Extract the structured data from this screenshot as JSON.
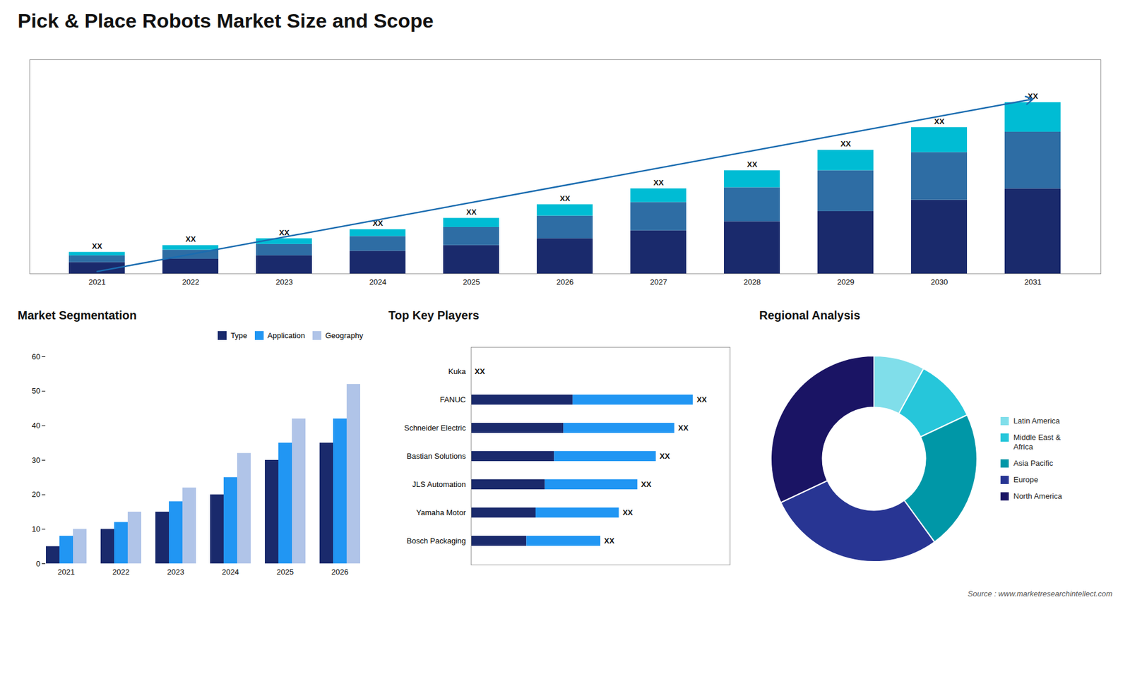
{
  "title": "Pick & Place Robots Market Size and Scope",
  "caption": "Source : www.marketresearchintellect.com",
  "chart_data": [
    {
      "type": "bar",
      "stacked": true,
      "categories": [
        "2021",
        "2022",
        "2023",
        "2024",
        "2025",
        "2026",
        "2027",
        "2028",
        "2029",
        "2030",
        "2031"
      ],
      "series": [
        {
          "color": "#1a2a6c",
          "values": [
            1.0,
            1.3,
            1.6,
            2.0,
            2.5,
            3.1,
            3.8,
            4.6,
            5.5,
            6.5,
            7.5
          ]
        },
        {
          "color": "#2e6da4",
          "values": [
            0.6,
            0.8,
            1.0,
            1.3,
            1.6,
            2.0,
            2.5,
            3.0,
            3.6,
            4.2,
            5.0
          ]
        },
        {
          "color": "#00bcd4",
          "values": [
            0.3,
            0.4,
            0.5,
            0.6,
            0.8,
            1.0,
            1.2,
            1.5,
            1.8,
            2.2,
            2.6
          ]
        }
      ],
      "ylim": [
        0,
        18.875
      ],
      "yticks": [],
      "tick_labels": "x",
      "grid": false,
      "annotations": [
        {
          "text": "XX",
          "x": "2021"
        },
        {
          "text": "XX",
          "x": "2022"
        },
        {
          "text": "XX",
          "x": "2023"
        },
        {
          "text": "XX",
          "x": "2024"
        },
        {
          "text": "XX",
          "x": "2025"
        },
        {
          "text": "XX",
          "x": "2026"
        },
        {
          "text": "XX",
          "x": "2027"
        },
        {
          "text": "XX",
          "x": "2028"
        },
        {
          "text": "XX",
          "x": "2029"
        },
        {
          "text": "XX",
          "x": "2030"
        },
        {
          "text": "XX",
          "x": "2031"
        },
        {
          "type": "arrow",
          "color": "#1a6cb0",
          "from": {
            "x": "2021",
            "y": 0.2
          },
          "to": {
            "x": "2031",
            "y": 15.4
          }
        }
      ]
    },
    {
      "type": "bar",
      "title": "Market Segmentation",
      "categories": [
        "2021",
        "2022",
        "2023",
        "2024",
        "2025",
        "2026"
      ],
      "series": [
        {
          "name": "Type",
          "color": "#1a2a6c",
          "values": [
            5,
            10,
            15,
            20,
            30,
            35
          ]
        },
        {
          "name": "Application",
          "color": "#2196f3",
          "values": [
            8,
            12,
            18,
            25,
            35,
            42
          ]
        },
        {
          "name": "Geography",
          "color": "#b0c4e8",
          "values": [
            10,
            15,
            22,
            32,
            42,
            52
          ]
        }
      ],
      "ylim": [
        0,
        60
      ],
      "yticks": [
        0,
        10,
        20,
        30,
        40,
        50,
        60
      ],
      "grid": false,
      "legend": "upper right"
    },
    {
      "type": "bar",
      "title": "Top Key Players",
      "orientation": "horizontal",
      "stacked": true,
      "categories": [
        "Bosch Packaging",
        "Yamaha Motor",
        "JLS Automation",
        "Bastian Solutions",
        "Schneider Electric",
        "FANUC",
        "Kuka"
      ],
      "series": [
        {
          "color": "#1a2a6c",
          "values": [
            3.0,
            3.5,
            4.0,
            4.5,
            5.0,
            5.5,
            0
          ]
        },
        {
          "color": "#2196f3",
          "values": [
            4.0,
            4.5,
            5.0,
            5.5,
            6.0,
            6.5,
            0
          ]
        }
      ],
      "xlim": [
        0,
        14
      ],
      "xticks": [],
      "tick_labels": "y",
      "grid": false,
      "annotations": [
        {
          "text": "XX",
          "y": "Bosch Packaging"
        },
        {
          "text": "XX",
          "y": "Yamaha Motor"
        },
        {
          "text": "XX",
          "y": "JLS Automation"
        },
        {
          "text": "XX",
          "y": "Bastian Solutions"
        },
        {
          "text": "XX",
          "y": "Schneider Electric"
        },
        {
          "text": "XX",
          "y": "FANUC"
        },
        {
          "text": "XX",
          "y": "Kuka"
        }
      ]
    },
    {
      "type": "donut",
      "title": "Regional Analysis",
      "categories": [
        "Latin America",
        "Middle East &\nAfrica",
        "Asia Pacific",
        "Europe",
        "North America"
      ],
      "values": [
        8,
        10,
        22,
        28,
        32
      ],
      "colors": [
        "#80deea",
        "#26c6da",
        "#0097a7",
        "#283593",
        "#1a1464"
      ],
      "legend": "right"
    }
  ]
}
